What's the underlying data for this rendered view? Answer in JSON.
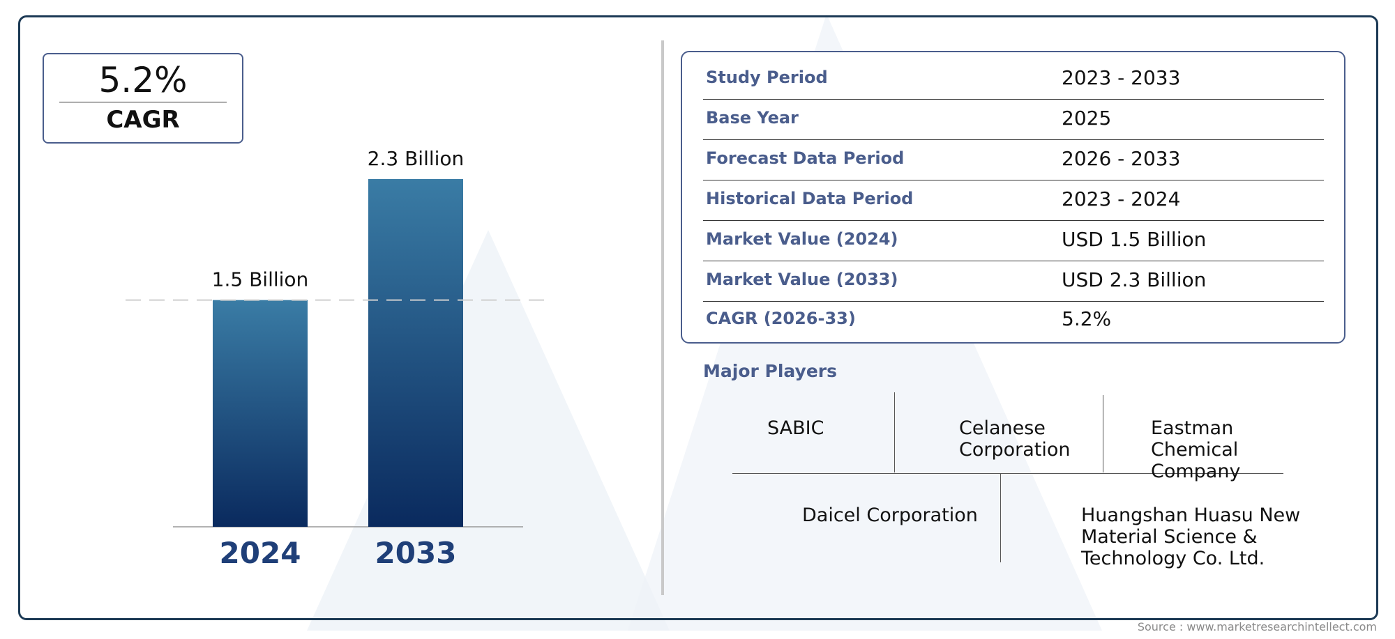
{
  "cagr_badge": {
    "value": "5.2%",
    "label": "CAGR"
  },
  "chart_data": {
    "type": "bar",
    "categories": [
      "2024",
      "2033"
    ],
    "values": [
      1.5,
      2.3
    ],
    "data_labels": [
      "1.5 Billion",
      "2.3 Billion"
    ],
    "title": "",
    "xlabel": "",
    "ylabel": "",
    "ylim": [
      0,
      2.3
    ],
    "grid": false,
    "legend": "none",
    "reference_line": "dashed at 2024 value",
    "bar_color_top": "#3a7ca5",
    "bar_color_bottom": "#0a2a5e"
  },
  "info_table": {
    "rows": [
      {
        "key": "Study Period",
        "value": "2023 - 2033"
      },
      {
        "key": "Base Year",
        "value": "2025"
      },
      {
        "key": "Forecast Data Period",
        "value": "2026 - 2033"
      },
      {
        "key": "Historical Data Period",
        "value": "2023 - 2024"
      },
      {
        "key": "Market Value (2024)",
        "value": "USD 1.5 Billion"
      },
      {
        "key": "Market Value (2033)",
        "value": "USD 2.3 Billion"
      },
      {
        "key": "CAGR (2026-33)",
        "value": "5.2%"
      }
    ]
  },
  "major_players": {
    "title": "Major Players",
    "row1": [
      "SABIC",
      "Celanese Corporation",
      "Eastman Chemical Company"
    ],
    "row2": [
      "Daicel Corporation",
      "Huangshan Huasu New Material Science & Technology Co. Ltd."
    ]
  },
  "source": "Source : www.marketresearchintellect.com",
  "colors": {
    "accent": "#4a5d8c",
    "frame": "#1c3a55",
    "year_label": "#1f3f78"
  }
}
